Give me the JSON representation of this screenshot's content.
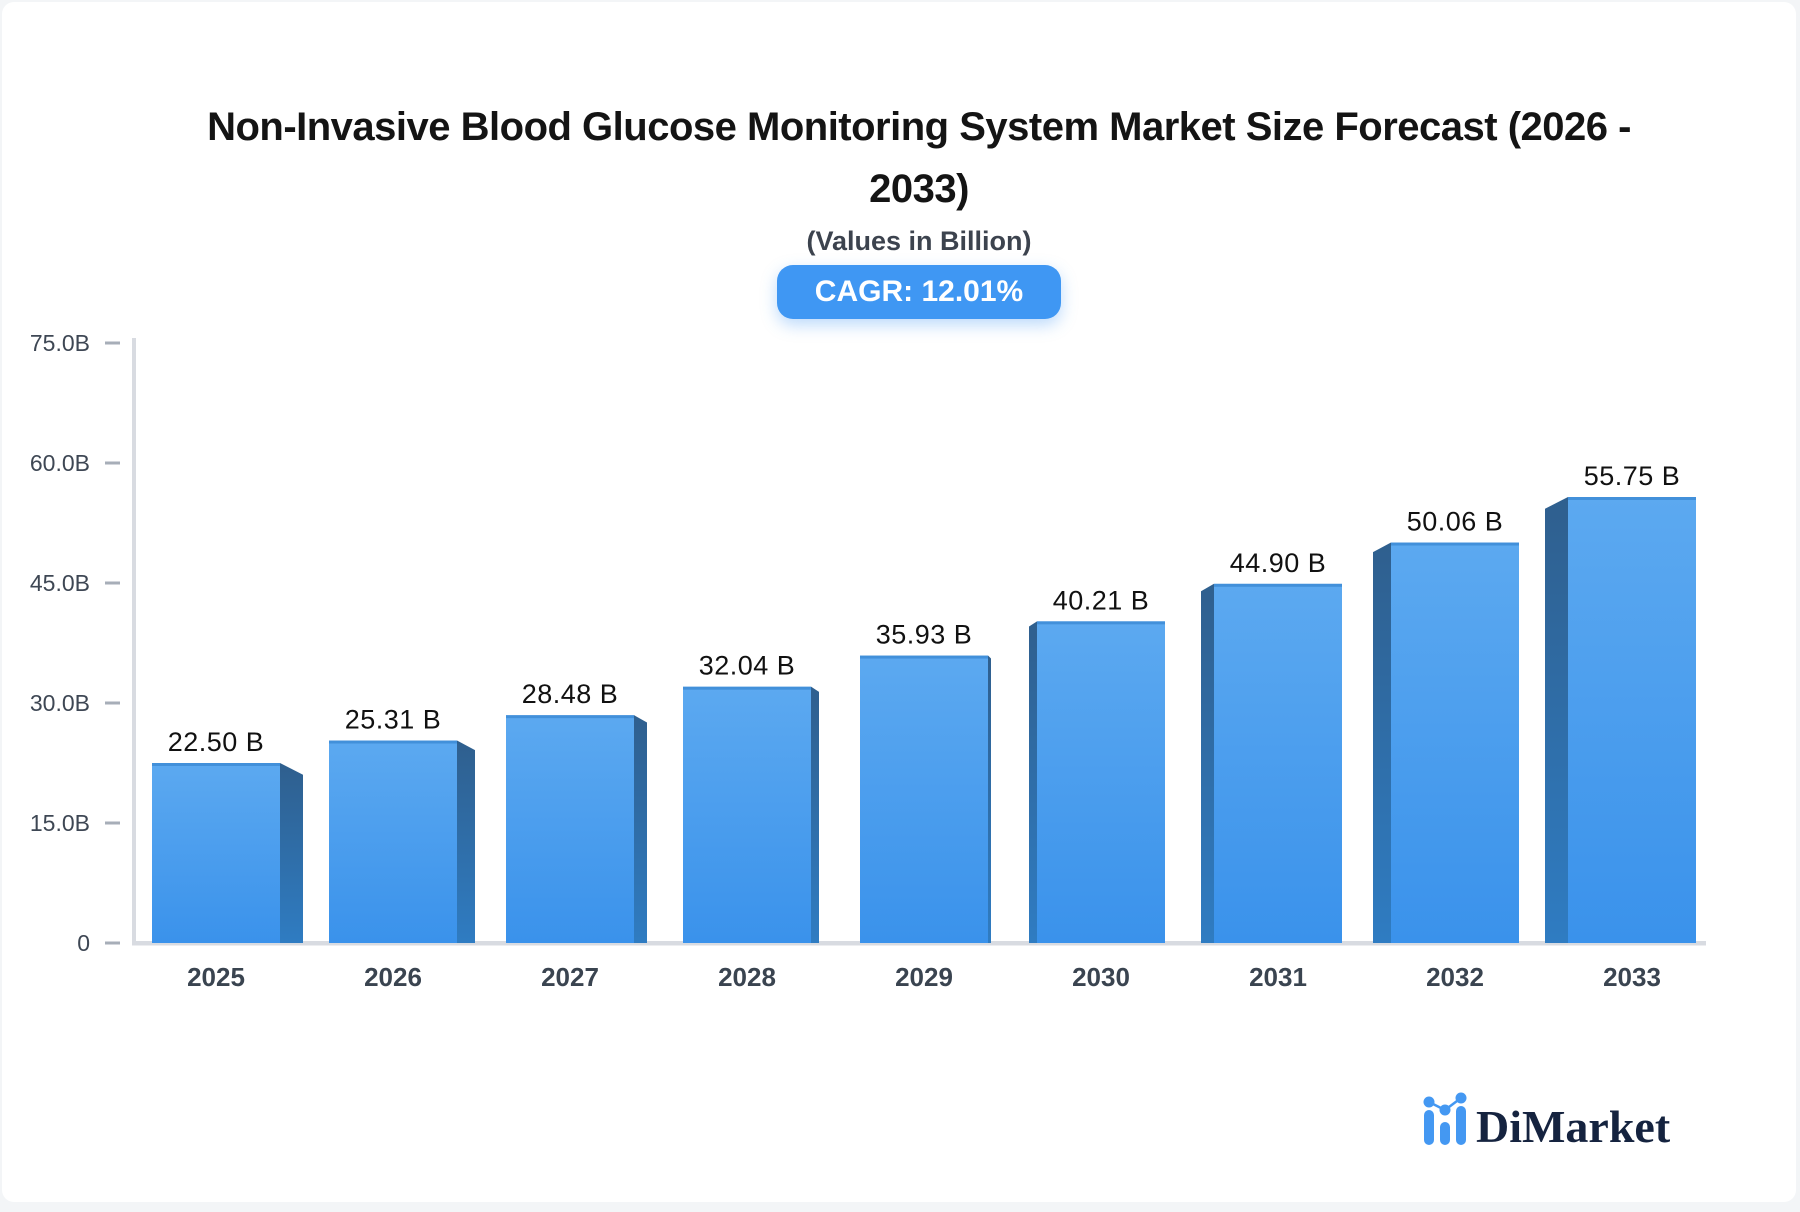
{
  "header": {
    "title_line1": "Non-Invasive Blood Glucose Monitoring System Market Size Forecast (2026 -",
    "title_line2": "2033)",
    "subtitle": "(Values in Billion)",
    "cagr_badge": "CAGR: 12.01%"
  },
  "logo": {
    "text": "DiMarket"
  },
  "colors": {
    "bar_face_top": "#5ca9f0",
    "bar_face_bottom": "#3a92eb",
    "bar_side_top": "#2f5f8e",
    "bar_side_bottom": "#2f7cc2",
    "bar_top_edge": "#2d7cc9",
    "badge_bg": "#3f97f3",
    "axis_line": "#d8dbe1",
    "tick_dash": "#a7aeb8",
    "tick_label": "#3e4754",
    "year_label": "#3a4450",
    "value_label": "#111111",
    "logo_blue": "#4498f2",
    "logo_navy": "#15233f"
  },
  "chart_data": {
    "type": "bar",
    "title": "Non-Invasive Blood Glucose Monitoring System Market Size Forecast (2026 - 2033)",
    "subtitle": "(Values in Billion)",
    "cagr_text": "CAGR: 12.01%",
    "categories": [
      "2025",
      "2026",
      "2027",
      "2028",
      "2029",
      "2030",
      "2031",
      "2032",
      "2033"
    ],
    "values": [
      22.5,
      25.31,
      28.48,
      32.04,
      35.93,
      40.21,
      44.9,
      50.06,
      55.75
    ],
    "value_labels": [
      "22.50 B",
      "25.31 B",
      "28.48 B",
      "32.04 B",
      "35.93 B",
      "40.21 B",
      "44.90 B",
      "50.06 B",
      "55.75 B"
    ],
    "xlabel": "",
    "ylabel": "",
    "ylim": [
      0,
      75
    ],
    "y_ticks": [
      {
        "value": 0,
        "label": "0"
      },
      {
        "value": 15,
        "label": "15.0B"
      },
      {
        "value": 30,
        "label": "30.0B"
      },
      {
        "value": 45,
        "label": "45.0B"
      },
      {
        "value": 60,
        "label": "60.0B"
      },
      {
        "value": 75,
        "label": "75.0B"
      }
    ],
    "grid": false,
    "legend": false,
    "bar_style": "3d-perspective"
  }
}
